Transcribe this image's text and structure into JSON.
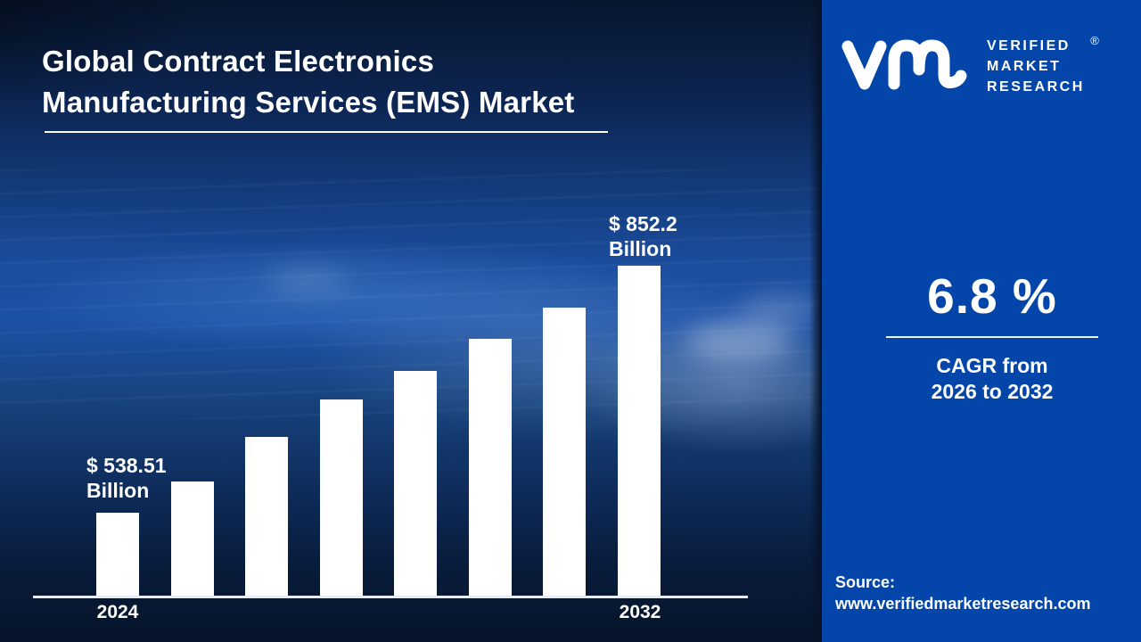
{
  "header": {
    "title_line1": "Global Contract Electronics",
    "title_line2": "Manufacturing Services (EMS) Market"
  },
  "logo": {
    "mark": "vmr-monogram",
    "line1": "VERIFIED",
    "line2": "MARKET",
    "line3": "RESEARCH",
    "registered": "®"
  },
  "stats": {
    "cagr_value": "6.8 %",
    "cagr_line1": "CAGR from",
    "cagr_line2": "2026 to 2032"
  },
  "source": {
    "label": "Source:",
    "website": "www.verifiedmarketresearch.com"
  },
  "chart_data": {
    "type": "bar",
    "title": "Global Contract Electronics Manufacturing Services (EMS) Market",
    "unit": "USD Billion",
    "bar_count": 8,
    "categories_labeled": [
      "2024",
      "2032"
    ],
    "start_point": {
      "year": "2024",
      "value_billion": 538.51,
      "label_line1": "$ 538.51",
      "label_line2": "Billion"
    },
    "end_point": {
      "year": "2032",
      "value_billion": 852.2,
      "label_line1": "$ 852.2",
      "label_line2": "Billion"
    },
    "bar_relative_heights": [
      0.251,
      0.346,
      0.481,
      0.595,
      0.681,
      0.778,
      0.873,
      1.0
    ],
    "bar_color": "#ffffff",
    "axis_color": "#e6ecf5",
    "gridlines": false,
    "legend": "none"
  },
  "colors": {
    "panel_blue": "#0345a8",
    "background_navy": "#0c2450",
    "text_white": "#ffffff"
  }
}
